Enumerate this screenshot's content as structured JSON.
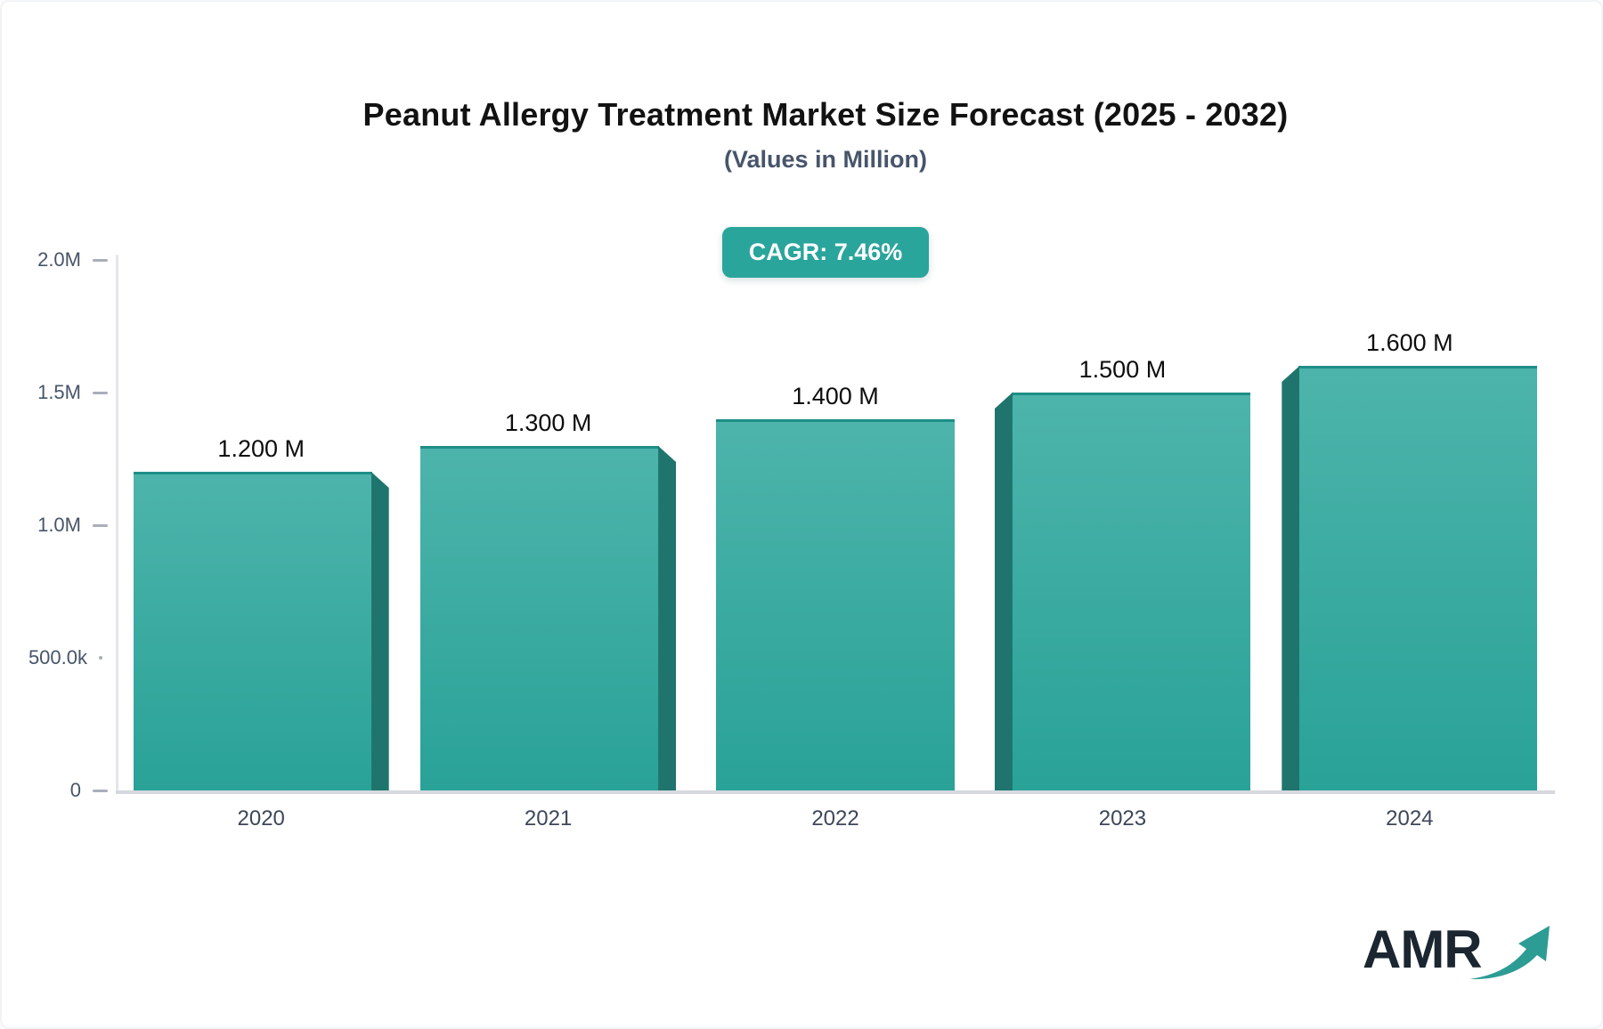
{
  "header": {
    "title": "Peanut Allergy Treatment Market Size Forecast (2025 - 2032)",
    "subtitle": "(Values in Million)",
    "cagr_label": "CAGR: 7.46%"
  },
  "chart_data": {
    "type": "bar",
    "title": "Peanut Allergy Treatment Market Size Forecast (2025 - 2032)",
    "subtitle": "(Values in Million)",
    "cagr": "7.46%",
    "categories": [
      "2020",
      "2021",
      "2022",
      "2023",
      "2024"
    ],
    "values": [
      1200000,
      1300000,
      1400000,
      1500000,
      1600000
    ],
    "bar_labels": [
      "1.200 M",
      "1.300 M",
      "1.400 M",
      "1.500 M",
      "1.600 M"
    ],
    "unit": "Million",
    "xlabel": "",
    "ylabel": "",
    "ylim": [
      0,
      2000000
    ],
    "yticks": [
      {
        "label": "2.0M",
        "value": 2000000,
        "minor": false
      },
      {
        "label": "1.5M",
        "value": 1500000,
        "minor": false
      },
      {
        "label": "1.0M",
        "value": 1000000,
        "minor": false
      },
      {
        "label": "500.0k",
        "value": 500000,
        "minor": true
      },
      {
        "label": "0",
        "value": 0,
        "minor": false
      }
    ],
    "bevels": [
      "right",
      "right",
      "none",
      "left",
      "left"
    ],
    "grid": false,
    "legend": "none",
    "colors": {
      "bar_top": "#4db4ab",
      "bar_bottom": "#29a298",
      "bar_side_3d": "#1f756d",
      "bar_top_edge": "#1e8e87",
      "badge_bg": "#29a59c",
      "axis_line": "#d5d9df",
      "tick_text": "#475569",
      "xlabel_text": "#3d4759",
      "title_text": "#121212"
    }
  },
  "footer": {
    "logo_text": "AMR",
    "logo_arrow_icon": "trend-up-arrow",
    "logo_arrow_color": "#2d9c94"
  }
}
